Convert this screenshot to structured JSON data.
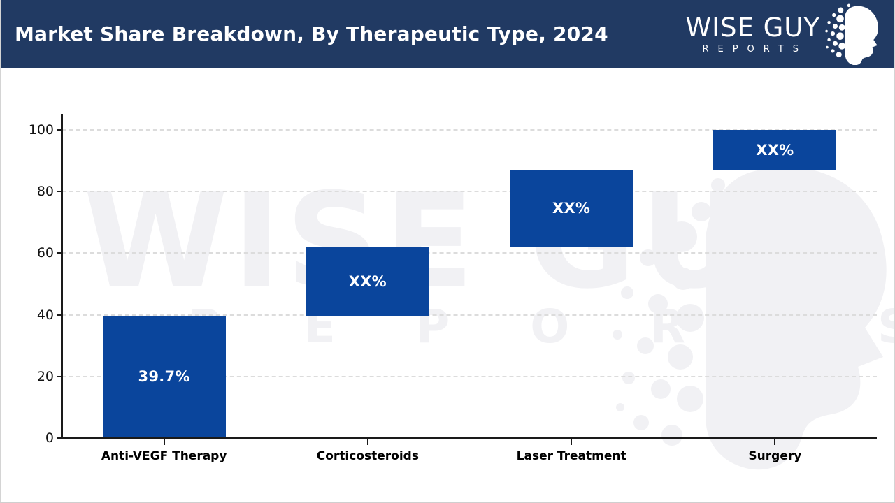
{
  "header": {
    "title": "Market Share Breakdown, By Therapeutic Type, 2024",
    "logo": {
      "line1": "WISE GUY",
      "line2": "REPORTS"
    }
  },
  "watermark": {
    "line1": "WISE GUY",
    "line2": "R E P O R T S"
  },
  "colors": {
    "header_bg": "#213a63",
    "bar": "#0a459c",
    "bar_label": "#ffffff",
    "grid": "#dcdcdc",
    "axis": "#1a1a1a",
    "watermark": "#f1f1f4"
  },
  "chart_data": {
    "type": "bar",
    "subtype": "waterfall",
    "title": "Market Share Breakdown, By Therapeutic Type, 2024",
    "categories": [
      "Anti-VEGF Therapy",
      "Corticosteroids",
      "Laser Treatment",
      "Surgery"
    ],
    "segments": [
      {
        "category": "Anti-VEGF Therapy",
        "start": 0,
        "end": 39.7,
        "label": "39.7%"
      },
      {
        "category": "Corticosteroids",
        "start": 39.7,
        "end": 62,
        "label": "XX%"
      },
      {
        "category": "Laser Treatment",
        "start": 62,
        "end": 87,
        "label": "XX%"
      },
      {
        "category": "Surgery",
        "start": 87,
        "end": 100,
        "label": "XX%"
      }
    ],
    "yticks": [
      0,
      20,
      40,
      60,
      80,
      100
    ],
    "ylim": [
      0,
      105
    ],
    "xlabel": "",
    "ylabel": "",
    "grid": "horizontal-dashed",
    "legend": "none"
  }
}
